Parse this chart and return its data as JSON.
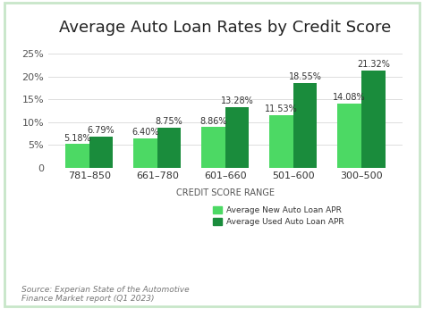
{
  "title": "Average Auto Loan Rates by Credit Score",
  "categories": [
    "781–850",
    "661–780",
    "601–660",
    "501–600",
    "300–500"
  ],
  "new_values": [
    5.18,
    6.4,
    8.86,
    11.53,
    14.08
  ],
  "used_values": [
    6.79,
    8.75,
    13.28,
    18.55,
    21.32
  ],
  "new_labels": [
    "5.18%",
    "6.40%",
    "8.86%",
    "11.53%",
    "14.08%"
  ],
  "used_labels": [
    "6.79%",
    "8.75%",
    "13.28%",
    "18.55%",
    "21.32%"
  ],
  "new_color": "#4cd964",
  "used_color": "#1a8c3c",
  "xlabel": "CREDIT SCORE RANGE",
  "ylabel_ticks": [
    "0",
    "5%",
    "10%",
    "15%",
    "20%",
    "25%"
  ],
  "yticks": [
    0,
    5,
    10,
    15,
    20,
    25
  ],
  "ylim": [
    0,
    27
  ],
  "legend_new": "Average New Auto Loan APR",
  "legend_used": "Average Used Auto Loan APR",
  "source_text": "Source: Experian State of the Automotive\nFinance Market report (Q1 2023)",
  "background_color": "#ffffff",
  "border_color": "#c8e6c9",
  "bar_width": 0.35,
  "title_fontsize": 13,
  "label_fontsize": 7,
  "tick_fontsize": 8,
  "xlabel_fontsize": 7,
  "source_fontsize": 6.5
}
